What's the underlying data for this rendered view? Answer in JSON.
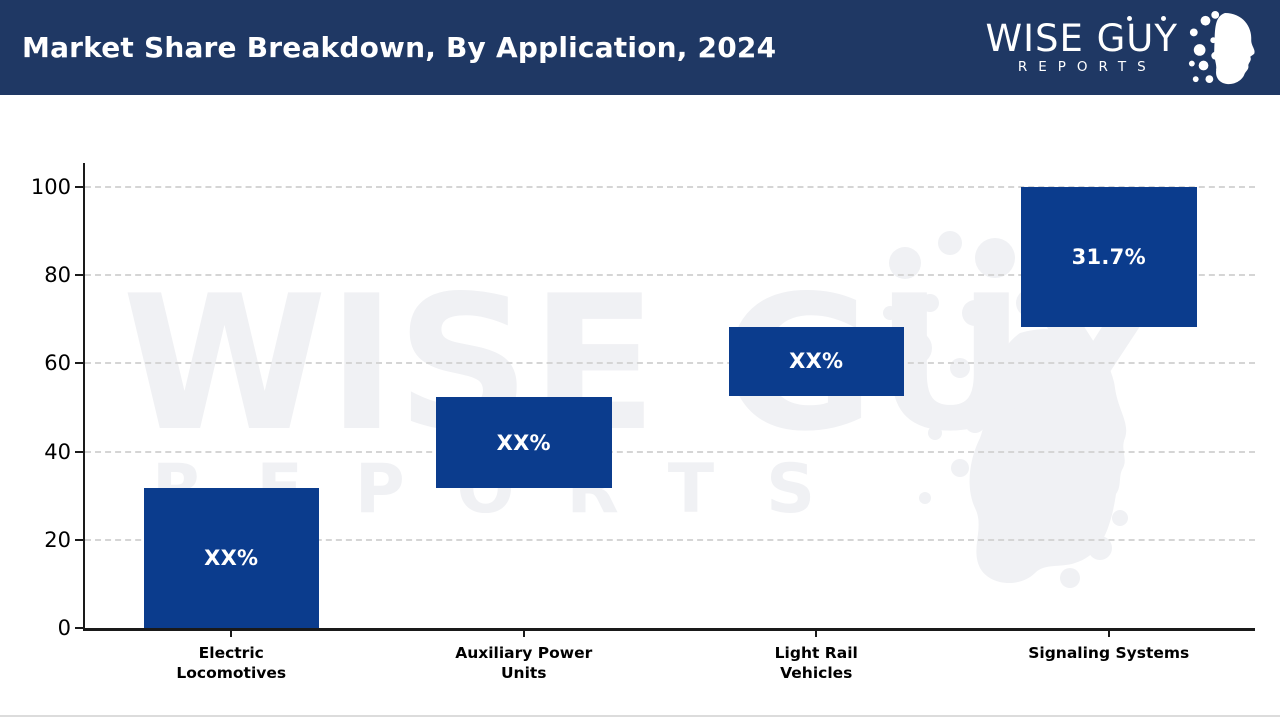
{
  "header": {
    "title": "Market Share Breakdown, By Application, 2024",
    "background": "#1f3864"
  },
  "logo": {
    "wordmark": "WISE GUY",
    "tagline": "REPORTS",
    "head_icon": "dotted-head-profile",
    "color": "#ffffff"
  },
  "watermark": {
    "line1": "WISE GUY",
    "line2": "REPORTS",
    "color": "#f0f1f4"
  },
  "chart_data": {
    "type": "bar",
    "subtype": "waterfall",
    "title": "Market Share Breakdown, By Application, 2024",
    "categories": [
      "Electric\nLocomotives",
      "Auxiliary Power\nUnits",
      "Light Rail\nVehicles",
      "Signaling Systems"
    ],
    "segments": [
      {
        "category": "Electric Locomotives",
        "start": 0,
        "end": 31.7,
        "label": "XX%"
      },
      {
        "category": "Auxiliary Power Units",
        "start": 31.7,
        "end": 52.3,
        "label": "XX%"
      },
      {
        "category": "Light Rail Vehicles",
        "start": 52.7,
        "end": 68.3,
        "label": "XX%"
      },
      {
        "category": "Signaling Systems",
        "start": 68.3,
        "end": 100,
        "label": "31.7%"
      }
    ],
    "bar_color": "#0b3c8d",
    "label_color": "#ffffff",
    "xlabel": "",
    "ylabel": "",
    "ylim": [
      0,
      100
    ],
    "yticks": [
      0,
      20,
      40,
      60,
      80,
      100
    ],
    "grid": "horizontal-dashed",
    "legend": "none"
  }
}
